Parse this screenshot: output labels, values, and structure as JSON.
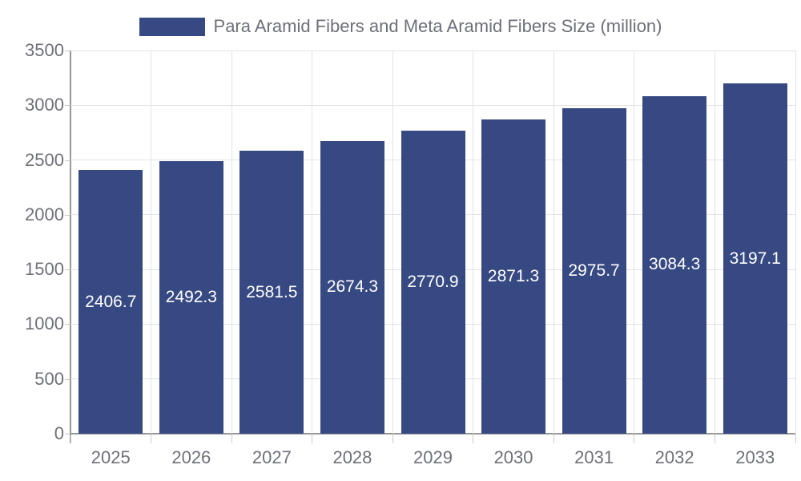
{
  "legend": {
    "label": "Para Aramid Fibers and Meta Aramid Fibers Size (million)"
  },
  "colors": {
    "bar": "#364982",
    "axis_text": "#6e7079",
    "grid_line": "#e2e3e8",
    "axis_line": "#979797",
    "value_label": "#ffffff",
    "background": "#ffffff"
  },
  "chart_data": {
    "type": "bar",
    "title": "Para Aramid Fibers and Meta Aramid Fibers Size (million)",
    "categories": [
      "2025",
      "2026",
      "2027",
      "2028",
      "2029",
      "2030",
      "2031",
      "2032",
      "2033"
    ],
    "values": [
      2406.7,
      2492.3,
      2581.5,
      2674.3,
      2770.9,
      2871.3,
      2975.7,
      3084.3,
      3197.1
    ],
    "xlabel": "",
    "ylabel": "",
    "ylim": [
      0,
      3500
    ],
    "y_ticks": [
      0,
      500,
      1000,
      1500,
      2000,
      2500,
      3000,
      3500
    ],
    "grid": true,
    "legend_position": "top-center",
    "value_labels": "inside-center-white"
  }
}
